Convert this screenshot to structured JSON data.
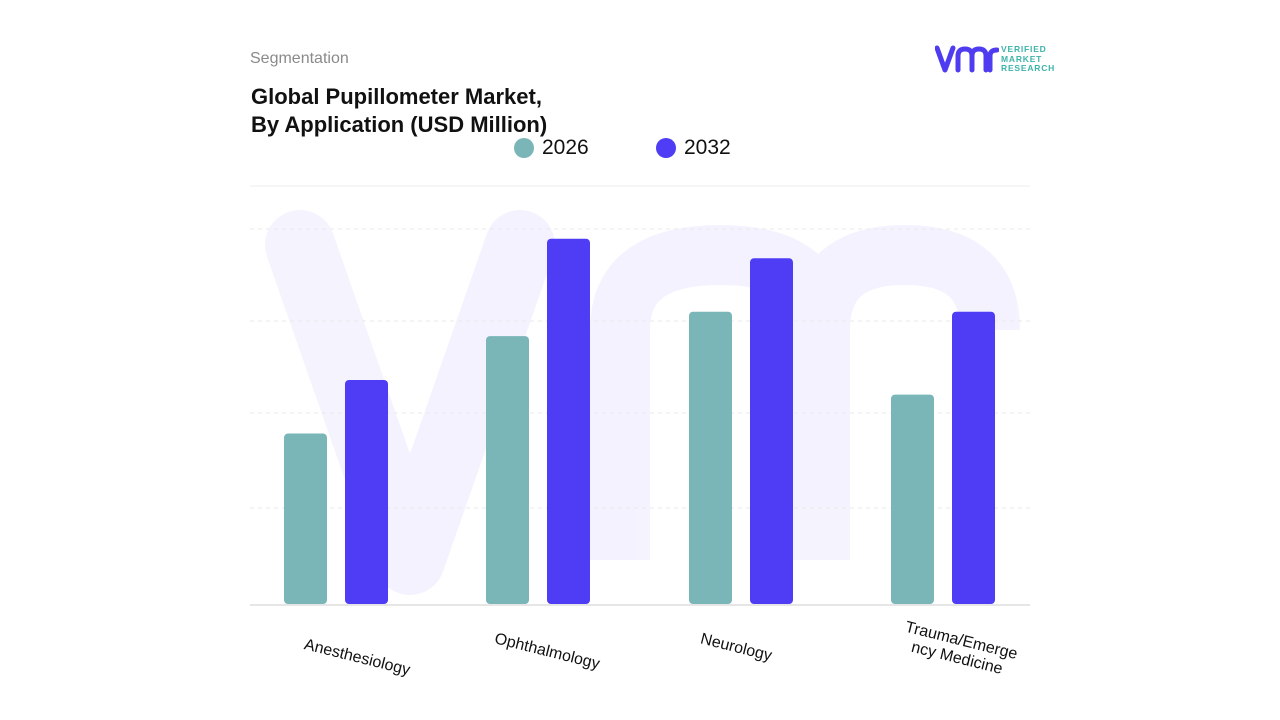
{
  "header": {
    "segmentation": "Segmentation",
    "title_line1": "Global Pupillometer Market,",
    "title_line2": "By Application (USD Million)"
  },
  "logo": {
    "mark": "vmr",
    "line1": "VERIFIED",
    "line2": "MARKET",
    "line3": "RESEARCH",
    "color_mark": "#4f3cf0",
    "color_text": "#3bb4aa"
  },
  "chart_data": {
    "type": "bar",
    "categories": [
      "Anesthesiology",
      "Ophthalmology",
      "Neurology",
      "Trauma/Emergency Medicine"
    ],
    "category_labels": [
      [
        "Anesthesiology"
      ],
      [
        "Ophthalmology"
      ],
      [
        "Neurology"
      ],
      [
        "Trauma/Emerge",
        "ncy Medicine"
      ]
    ],
    "series": [
      {
        "name": "2026",
        "color": "#7ab5b8",
        "values": [
          35,
          55,
          60,
          43
        ]
      },
      {
        "name": "2032",
        "color": "#4f3cf5",
        "values": [
          46,
          75,
          71,
          60
        ]
      }
    ],
    "ylim": [
      0,
      85
    ],
    "grid": true,
    "legend_position": "top",
    "xlabel": "",
    "ylabel": ""
  }
}
